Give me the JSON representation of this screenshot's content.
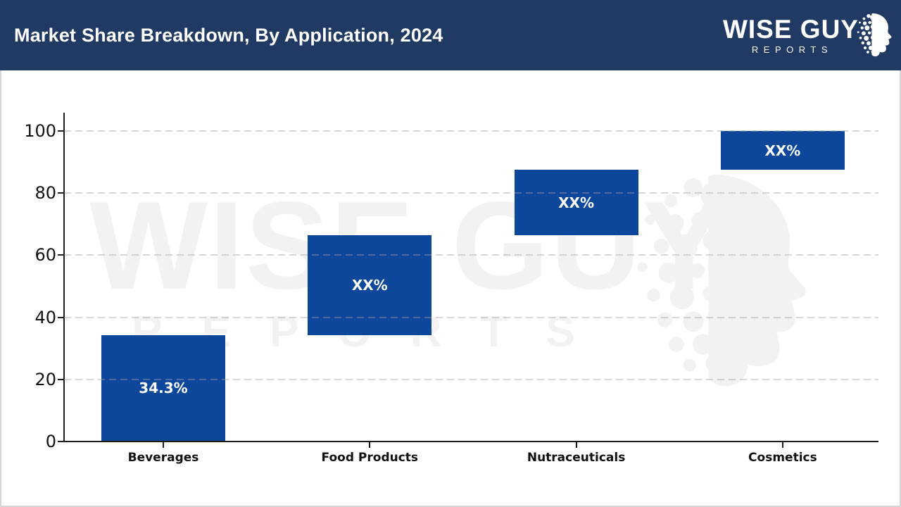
{
  "header": {
    "title": "Market Share Breakdown, By Application, 2024",
    "logo": {
      "name": "WISE GUY",
      "sub": "REPORTS"
    }
  },
  "watermark": {
    "name": "WISE GUY",
    "sub": "REPORTS"
  },
  "colors": {
    "header_bg": "#203a64",
    "bar": "#0c479c",
    "bar_label": "#ffffff",
    "axis": "#1c1c1c",
    "gridline": "rgba(160,160,160,0.42)",
    "watermark": "#f2f2f4"
  },
  "chart_data": {
    "type": "bar",
    "variant": "waterfall",
    "title": "Market Share Breakdown, By Application, 2024",
    "xlabel": "",
    "ylabel": "",
    "categories": [
      "Beverages",
      "Food Products",
      "Nutraceuticals",
      "Cosmetics"
    ],
    "segments": [
      {
        "category": "Beverages",
        "start": 0,
        "end": 34.3,
        "label": "34.3%"
      },
      {
        "category": "Food Products",
        "start": 34.3,
        "end": 66.4,
        "label": "XX%"
      },
      {
        "category": "Nutraceuticals",
        "start": 66.4,
        "end": 87.5,
        "label": "XX%"
      },
      {
        "category": "Cosmetics",
        "start": 87.5,
        "end": 100,
        "label": "XX%"
      }
    ],
    "ylim": [
      0,
      100
    ],
    "yticks": [
      0,
      20,
      40,
      60,
      80,
      100
    ],
    "grid": "horizontal-dashed",
    "legend": "none",
    "bar_color": "#0c479c"
  }
}
